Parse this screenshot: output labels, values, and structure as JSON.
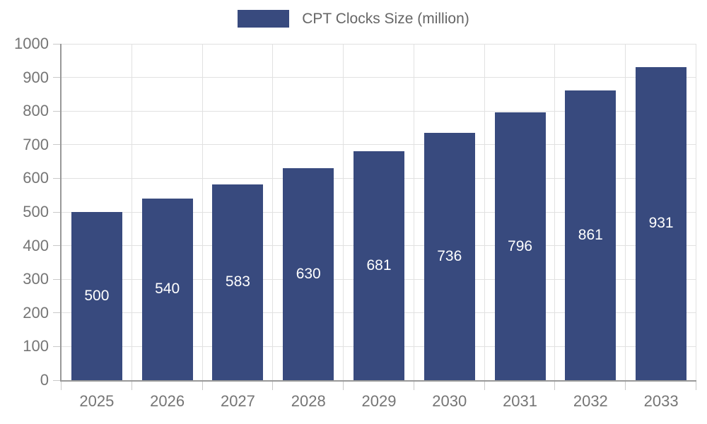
{
  "chart_data": {
    "type": "bar",
    "title": "CPT Clocks Size (million)",
    "categories": [
      "2025",
      "2026",
      "2027",
      "2028",
      "2029",
      "2030",
      "2031",
      "2032",
      "2033"
    ],
    "values": [
      500,
      540,
      583,
      630,
      681,
      736,
      796,
      861,
      931
    ],
    "xlabel": "",
    "ylabel": "",
    "ylim": [
      0,
      1000
    ],
    "ytick_step": 100,
    "grid": true,
    "legend_position": "top",
    "value_labels": "inside-center",
    "colors": {
      "bar": "#384A7E",
      "axis": "#999999",
      "grid": "#E1E1E1",
      "tick": "#C9C9C9",
      "axis_label": "#757575",
      "legend_text": "#666666",
      "value_label": "#FFFFFF",
      "background": "#FFFFFF"
    }
  }
}
